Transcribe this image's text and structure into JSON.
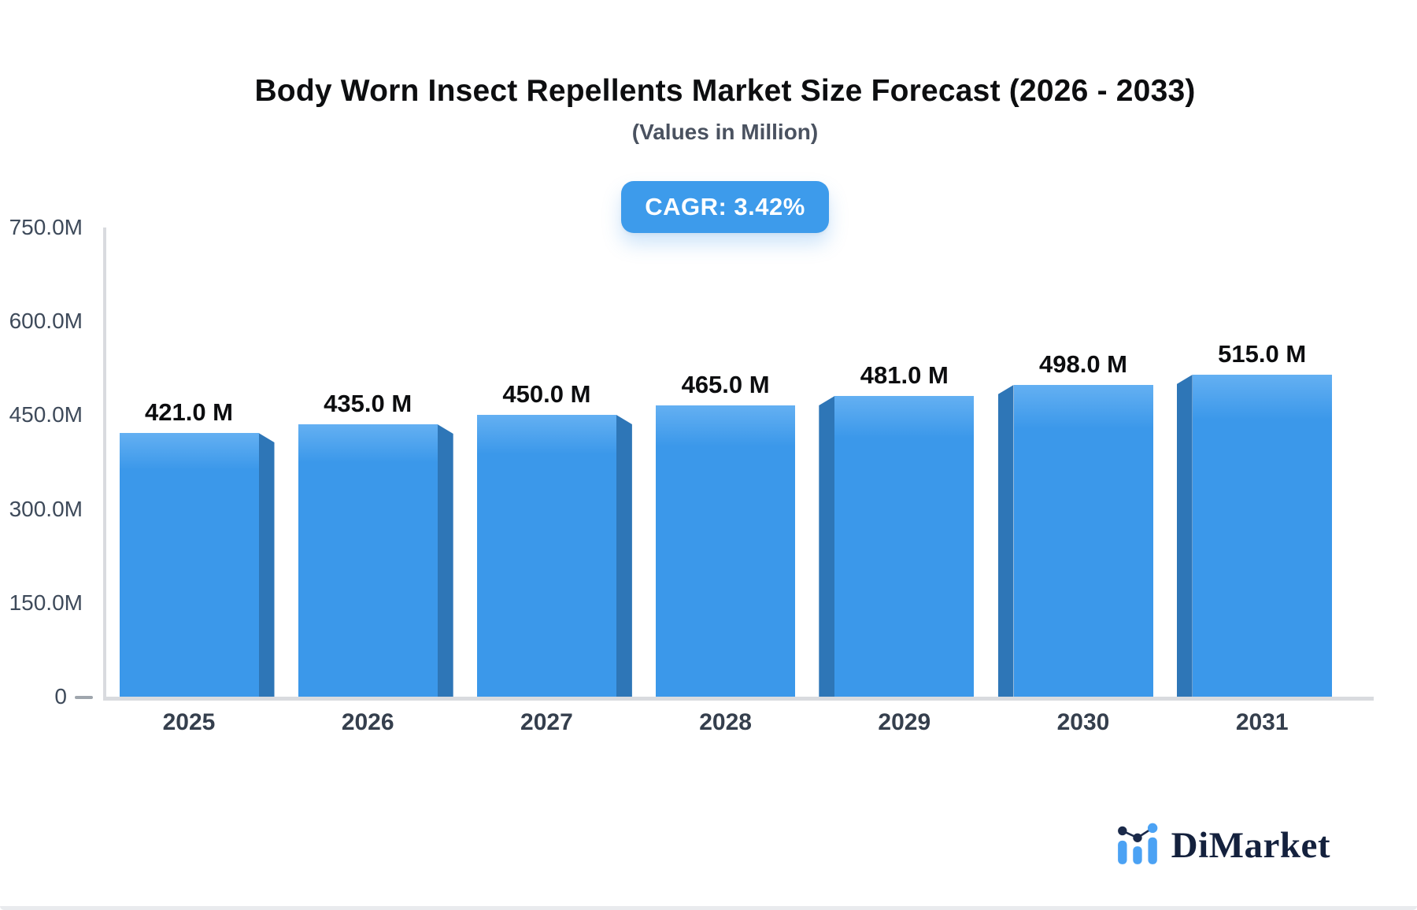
{
  "header": {
    "title": "Body Worn Insect Repellents Market Size Forecast (2026 - 2033)",
    "subtitle": "(Values in Million)",
    "cagr_badge": "CAGR: 3.42%"
  },
  "chart_data": {
    "type": "bar",
    "title": "Body Worn Insect Repellents Market Size Forecast (2026 - 2033)",
    "subtitle": "(Values in Million)",
    "unit": "Million",
    "cagr": "3.42%",
    "categories": [
      "2025",
      "2026",
      "2027",
      "2028",
      "2029",
      "2030",
      "2031"
    ],
    "values": [
      421.0,
      435.0,
      450.0,
      465.0,
      481.0,
      498.0,
      515.0
    ],
    "value_labels": [
      "421.0 M",
      "435.0 M",
      "450.0 M",
      "465.0 M",
      "481.0 M",
      "498.0 M",
      "515.0 M"
    ],
    "ylim": [
      0,
      750
    ],
    "yticks": [
      {
        "label": "0",
        "value": 0
      },
      {
        "label": "150.0M",
        "value": 150
      },
      {
        "label": "300.0M",
        "value": 300
      },
      {
        "label": "450.0M",
        "value": 450
      },
      {
        "label": "600.0M",
        "value": 600
      },
      {
        "label": "750.0M",
        "value": 750
      }
    ],
    "grid": false,
    "legend": "none",
    "bar_face_color": "#3b98ea",
    "bar_face_light_color": "#64b0f2",
    "bar_side_color": "#2e76b7"
  },
  "branding": {
    "logo_text": "DiMarket",
    "logo_icon": "bar-chart-logo-icon"
  },
  "colors": {
    "accent_blue": "#3d9beb",
    "axis_line": "#d9dbdf",
    "zero_tick": "#9fa6ad",
    "axis_text": "#3e4a5a",
    "title_text": "#0d0e10",
    "subtitle_text": "#4a5260",
    "value_text": "#0c0d0f",
    "logo_navy": "#14213d",
    "logo_blue": "#4ba2f4",
    "background": "#ffffff"
  }
}
